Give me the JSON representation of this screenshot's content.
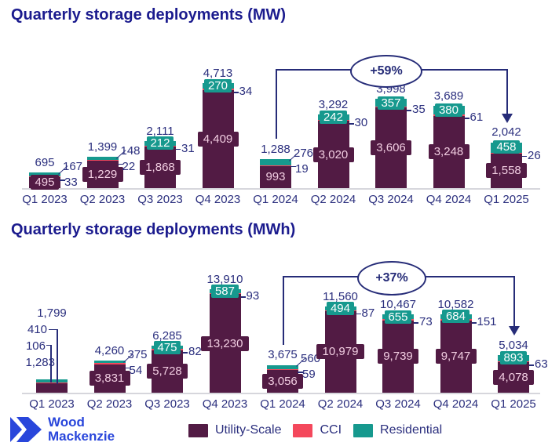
{
  "brand": {
    "line1": "Wood",
    "line2": "Mackenzie",
    "color": "#2946DB"
  },
  "colors": {
    "title_navy": "#1B1B8E",
    "label_navy": "#2B2F7E",
    "annotation_navy": "#262C78",
    "utility_scale": "#521B44",
    "cci": "#F4485C",
    "residential": "#16998E",
    "bar_label_light_pink": "#F2CEE2",
    "bar_label_white": "#FFFFFF",
    "axis_line_gray": "#D6D6DC"
  },
  "legend": {
    "items": [
      {
        "label": "Utility-Scale",
        "color": "#521B44"
      },
      {
        "label": "CCI",
        "color": "#F4485C"
      },
      {
        "label": "Residential",
        "color": "#16998E"
      }
    ]
  },
  "chart_data": [
    {
      "type": "bar",
      "stacked": true,
      "title": "Quarterly storage deployments (MW)",
      "unit": "MW",
      "categories": [
        "Q1 2023",
        "Q2 2023",
        "Q3 2023",
        "Q4 2023",
        "Q1 2024",
        "Q2 2024",
        "Q3 2024",
        "Q4 2024",
        "Q1 2025"
      ],
      "series": [
        {
          "name": "Utility-Scale",
          "color": "#521B44",
          "values": [
            495,
            1229,
            1868,
            4409,
            993,
            3020,
            3606,
            3248,
            1558
          ]
        },
        {
          "name": "CCI",
          "color": "#F4485C",
          "values": [
            33,
            22,
            31,
            34,
            19,
            30,
            35,
            61,
            26
          ]
        },
        {
          "name": "Residential",
          "color": "#16998E",
          "values": [
            167,
            148,
            212,
            270,
            276,
            242,
            357,
            380,
            458
          ]
        }
      ],
      "totals": [
        "695",
        "1,399",
        "2,111",
        "4,713",
        "1,288",
        "3,292",
        "3,998",
        "3,689",
        "2,042"
      ],
      "growth_annotation": {
        "label": "+59%",
        "from": "Q1 2024",
        "to": "Q1 2025"
      },
      "ylim": [
        0,
        5000
      ],
      "gridlines": false,
      "legend_position": "bottom"
    },
    {
      "type": "bar",
      "stacked": true,
      "title": "Quarterly storage deployments (MWh)",
      "unit": "MWh",
      "categories": [
        "Q1 2023",
        "Q2 2023",
        "Q3 2023",
        "Q4 2023",
        "Q1 2024",
        "Q2 2024",
        "Q3 2024",
        "Q4 2024",
        "Q1 2025"
      ],
      "series": [
        {
          "name": "Utility-Scale",
          "color": "#521B44",
          "values": [
            1283,
            3831,
            5728,
            13230,
            3056,
            10979,
            9739,
            9747,
            4078
          ]
        },
        {
          "name": "CCI",
          "color": "#F4485C",
          "values": [
            106,
            54,
            82,
            93,
            59,
            87,
            73,
            151,
            63
          ]
        },
        {
          "name": "Residential",
          "color": "#16998E",
          "values": [
            410,
            375,
            475,
            587,
            560,
            494,
            655,
            684,
            893
          ]
        }
      ],
      "totals": [
        "1,799",
        "4,260",
        "6,285",
        "13,910",
        "3,675",
        "11,560",
        "10,467",
        "10,582",
        "5,034"
      ],
      "growth_annotation": {
        "label": "+37%",
        "from": "Q1 2024",
        "to": "Q1 2025"
      },
      "ylim": [
        0,
        14500
      ],
      "gridlines": false,
      "legend_position": "bottom"
    }
  ]
}
